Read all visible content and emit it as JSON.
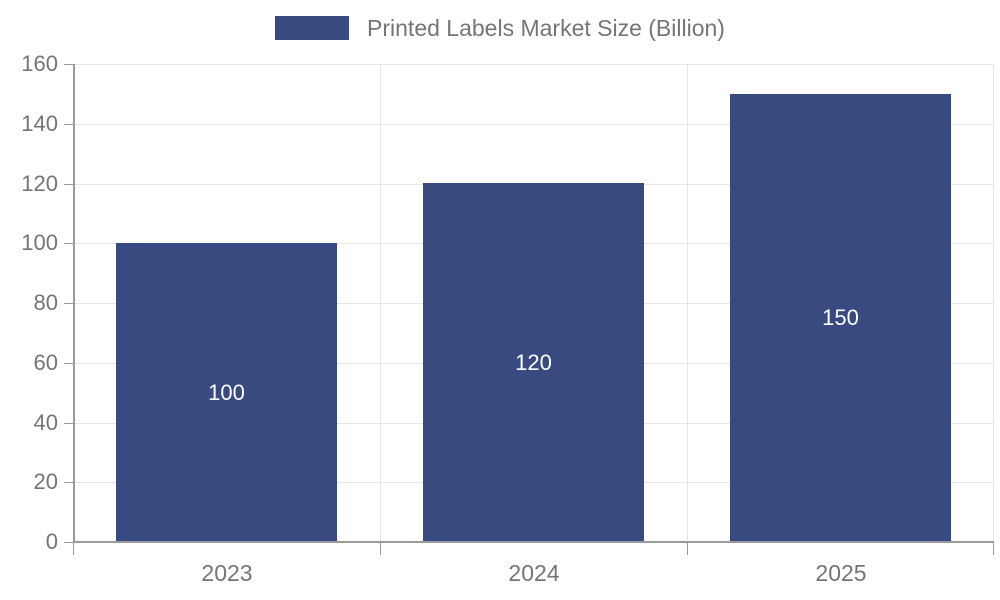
{
  "chart_data": {
    "type": "bar",
    "title": "Printed Labels Market Size (Billion)",
    "categories": [
      "2023",
      "2024",
      "2025"
    ],
    "series": [
      {
        "name": "Printed Labels Market Size (Billion)",
        "values": [
          100,
          120,
          150
        ]
      }
    ],
    "data_labels": [
      "100",
      "120",
      "150"
    ],
    "xlabel": "",
    "ylabel": "",
    "ylim": [
      0,
      160
    ],
    "ytick_step": 20,
    "ytick_labels": [
      "0",
      "20",
      "40",
      "60",
      "80",
      "100",
      "120",
      "140",
      "160"
    ],
    "grid": true,
    "legend_position": "top-center",
    "colors": {
      "bar": "#394a80",
      "grid": "#e5e5e5",
      "axis": "#9a9a9a",
      "tick_text": "#757575",
      "data_label": "#ffffff",
      "background": "#ffffff"
    }
  }
}
